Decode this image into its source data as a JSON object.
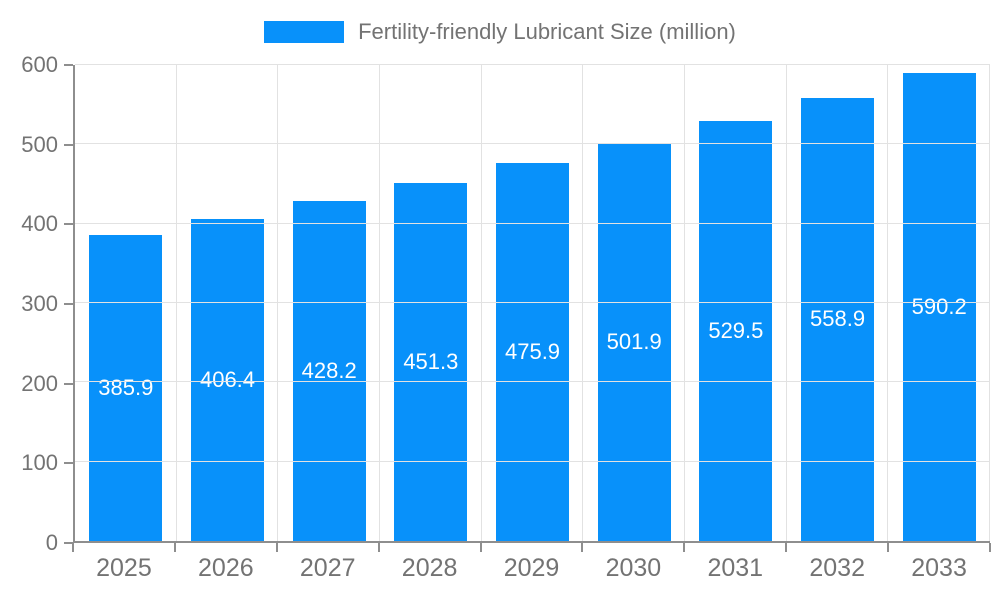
{
  "chart_data": {
    "type": "bar",
    "title": "Fertility-friendly Lubricant Size (million)",
    "legend_entries": [
      "Fertility-friendly Lubricant Size (million)"
    ],
    "legend_position": "top-center",
    "categories": [
      "2025",
      "2026",
      "2027",
      "2028",
      "2029",
      "2030",
      "2031",
      "2032",
      "2033"
    ],
    "values": [
      385.9,
      406.4,
      428.2,
      451.3,
      475.9,
      501.9,
      529.5,
      558.9,
      590.2
    ],
    "value_labels": [
      "385.9",
      "406.4",
      "428.2",
      "451.3",
      "475.9",
      "501.9",
      "529.5",
      "558.9",
      "590.2"
    ],
    "xlabel": "",
    "ylabel": "",
    "ylim": [
      0,
      600
    ],
    "yticks": [
      "0",
      "100",
      "200",
      "300",
      "400",
      "500",
      "600"
    ],
    "ytick_values": [
      0,
      100,
      200,
      300,
      400,
      500,
      600
    ],
    "grid": true,
    "bar_color": "#0891fa",
    "value_label_color": "#ffffff",
    "axis_text_color": "#737373",
    "grid_color": "#e2e2e2",
    "axis_line_color": "#8e8e8e",
    "background_color": "#ffffff"
  }
}
